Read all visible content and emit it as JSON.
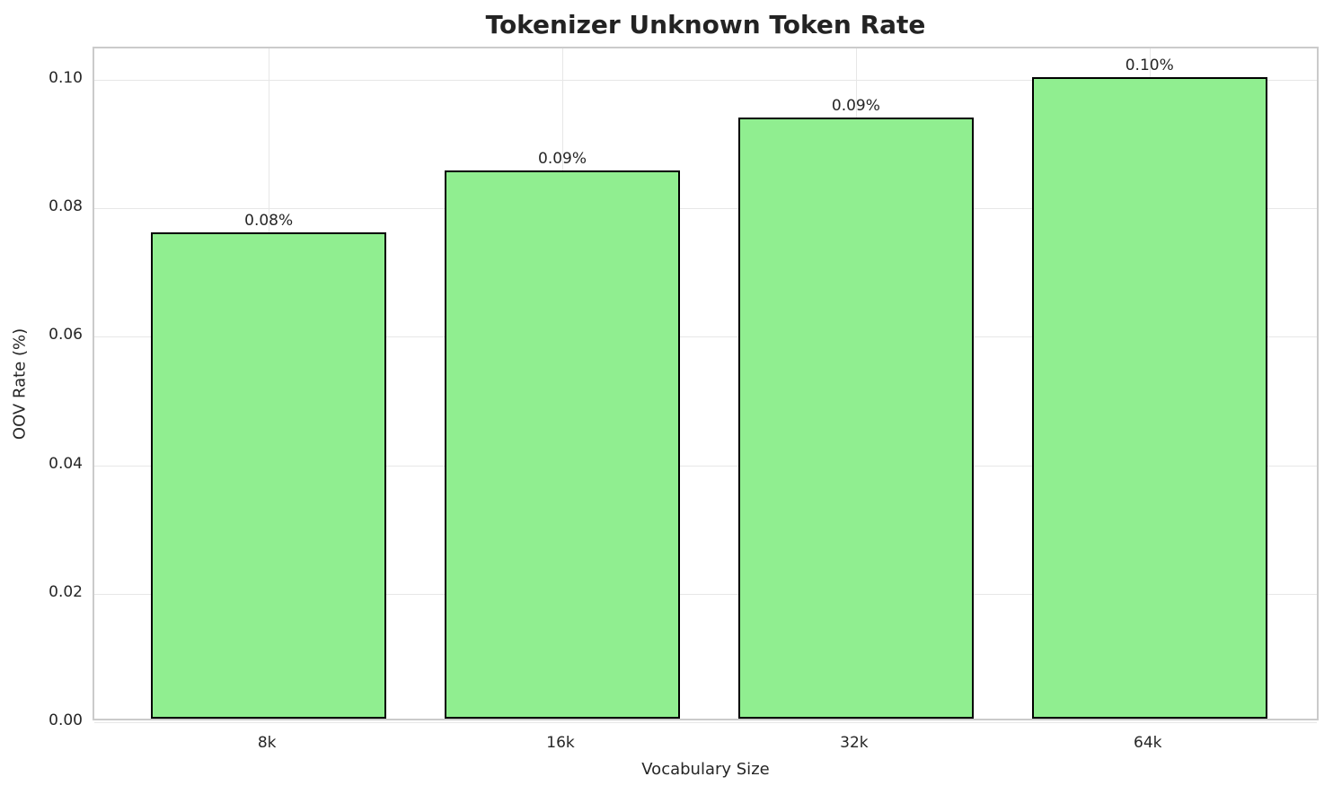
{
  "chart_data": {
    "type": "bar",
    "title": "Tokenizer Unknown Token Rate",
    "xlabel": "Vocabulary Size",
    "ylabel": "OOV Rate (%)",
    "categories": [
      "8k",
      "16k",
      "32k",
      "64k"
    ],
    "values": [
      0.0757,
      0.0853,
      0.0936,
      0.0999
    ],
    "bar_labels": [
      "0.08%",
      "0.09%",
      "0.09%",
      "0.10%"
    ],
    "ytick_values": [
      0.0,
      0.02,
      0.04,
      0.06,
      0.08,
      0.1
    ],
    "ytick_labels": [
      "0.00",
      "0.02",
      "0.04",
      "0.06",
      "0.08",
      "0.10"
    ],
    "ylim": [
      0,
      0.1049
    ],
    "xlim": [
      -0.594,
      3.582
    ],
    "bar_width": 0.8,
    "grid": true,
    "legend": null,
    "colors": {
      "bar_fill": "#90EE90",
      "bar_edge": "#000000",
      "grid": "#e7e7e7",
      "spine": "#cbcbcb",
      "text": "#262626",
      "background": "#ffffff"
    }
  }
}
